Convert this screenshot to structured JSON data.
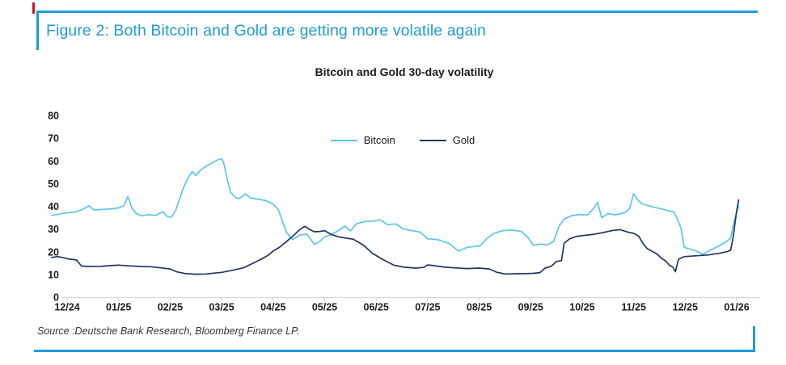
{
  "figure": {
    "title": "Figure 2: Both Bitcoin and Gold are getting more volatile again",
    "source": "Source :Deutsche Bank Research, Bloomberg Finance LP.",
    "accent_color": "#1e9cd8",
    "edge_marker_color": "#d11124"
  },
  "chart_data": {
    "type": "line",
    "title": "Bitcoin and Gold 30-day volatility",
    "x_ticklabels": [
      "12/24",
      "01/25",
      "02/25",
      "03/25",
      "04/25",
      "05/25",
      "06/25",
      "07/25",
      "08/25",
      "09/25",
      "10/25",
      "11/25",
      "12/25",
      "01/26"
    ],
    "y_ticks": [
      0,
      10,
      20,
      30,
      40,
      50,
      60,
      70,
      80
    ],
    "ylim": [
      0,
      80
    ],
    "grid": false,
    "legend_position": "top-center",
    "x_domain_months": [
      0,
      13
    ],
    "series": [
      {
        "name": "Bitcoin",
        "color": "#5bc6e8",
        "points": [
          [
            -0.3,
            36.0
          ],
          [
            -0.15,
            36.6
          ],
          [
            0,
            37.2
          ],
          [
            0.15,
            37.4
          ],
          [
            0.3,
            38.6
          ],
          [
            0.42,
            40.2
          ],
          [
            0.52,
            38.4
          ],
          [
            0.68,
            38.6
          ],
          [
            0.85,
            38.9
          ],
          [
            1.0,
            39.3
          ],
          [
            1.1,
            40.3
          ],
          [
            1.18,
            44.3
          ],
          [
            1.26,
            39.2
          ],
          [
            1.34,
            36.9
          ],
          [
            1.45,
            35.8
          ],
          [
            1.58,
            36.3
          ],
          [
            1.72,
            36.0
          ],
          [
            1.86,
            37.7
          ],
          [
            1.94,
            35.6
          ],
          [
            2.02,
            35.2
          ],
          [
            2.1,
            37.8
          ],
          [
            2.18,
            43.0
          ],
          [
            2.26,
            48.2
          ],
          [
            2.35,
            52.6
          ],
          [
            2.43,
            55.3
          ],
          [
            2.5,
            53.6
          ],
          [
            2.58,
            55.7
          ],
          [
            2.7,
            57.7
          ],
          [
            2.82,
            59.2
          ],
          [
            2.92,
            60.4
          ],
          [
            3.0,
            60.9
          ],
          [
            3.04,
            59.3
          ],
          [
            3.1,
            52.8
          ],
          [
            3.17,
            46.3
          ],
          [
            3.26,
            44.0
          ],
          [
            3.34,
            43.4
          ],
          [
            3.46,
            45.5
          ],
          [
            3.56,
            43.7
          ],
          [
            3.72,
            43.1
          ],
          [
            3.86,
            42.5
          ],
          [
            4.0,
            41.0
          ],
          [
            4.1,
            38.6
          ],
          [
            4.18,
            33.5
          ],
          [
            4.26,
            28.5
          ],
          [
            4.38,
            25.4
          ],
          [
            4.52,
            27.4
          ],
          [
            4.66,
            27.7
          ],
          [
            4.8,
            23.2
          ],
          [
            4.92,
            24.8
          ],
          [
            5.0,
            26.6
          ],
          [
            5.12,
            27.4
          ],
          [
            5.28,
            29.5
          ],
          [
            5.4,
            31.3
          ],
          [
            5.5,
            29.2
          ],
          [
            5.62,
            32.4
          ],
          [
            5.78,
            33.3
          ],
          [
            5.95,
            33.5
          ],
          [
            6.08,
            34.1
          ],
          [
            6.22,
            31.9
          ],
          [
            6.38,
            32.3
          ],
          [
            6.52,
            30.1
          ],
          [
            6.7,
            29.3
          ],
          [
            6.86,
            28.6
          ],
          [
            7.0,
            25.7
          ],
          [
            7.2,
            25.3
          ],
          [
            7.42,
            23.6
          ],
          [
            7.6,
            20.3
          ],
          [
            7.76,
            21.9
          ],
          [
            7.9,
            22.3
          ],
          [
            8.02,
            22.6
          ],
          [
            8.16,
            26.1
          ],
          [
            8.3,
            28.2
          ],
          [
            8.46,
            29.3
          ],
          [
            8.64,
            29.6
          ],
          [
            8.82,
            28.9
          ],
          [
            8.95,
            26.3
          ],
          [
            9.05,
            22.9
          ],
          [
            9.2,
            23.4
          ],
          [
            9.32,
            23.0
          ],
          [
            9.45,
            24.7
          ],
          [
            9.55,
            31.2
          ],
          [
            9.65,
            34.4
          ],
          [
            9.8,
            35.9
          ],
          [
            9.95,
            36.4
          ],
          [
            10.1,
            36.2
          ],
          [
            10.22,
            39.0
          ],
          [
            10.3,
            41.7
          ],
          [
            10.38,
            35.0
          ],
          [
            10.5,
            36.8
          ],
          [
            10.65,
            36.2
          ],
          [
            10.82,
            37.2
          ],
          [
            10.92,
            38.9
          ],
          [
            11.0,
            45.6
          ],
          [
            11.07,
            43.1
          ],
          [
            11.16,
            41.1
          ],
          [
            11.3,
            40.2
          ],
          [
            11.48,
            39.2
          ],
          [
            11.65,
            38.2
          ],
          [
            11.78,
            37.5
          ],
          [
            11.85,
            34.3
          ],
          [
            11.92,
            30.3
          ],
          [
            11.98,
            22.1
          ],
          [
            12.05,
            21.4
          ],
          [
            12.18,
            20.7
          ],
          [
            12.34,
            18.9
          ],
          [
            12.5,
            20.8
          ],
          [
            12.64,
            22.4
          ],
          [
            12.78,
            24.2
          ],
          [
            12.88,
            25.9
          ],
          [
            12.94,
            32.3
          ],
          [
            13.0,
            37.5
          ],
          [
            13.04,
            40.1
          ]
        ]
      },
      {
        "name": "Gold",
        "color": "#22355f",
        "points": [
          [
            -0.3,
            17.5
          ],
          [
            -0.18,
            17.9
          ],
          [
            -0.05,
            17.2
          ],
          [
            0.05,
            16.7
          ],
          [
            0.18,
            16.4
          ],
          [
            0.28,
            13.7
          ],
          [
            0.45,
            13.5
          ],
          [
            0.65,
            13.6
          ],
          [
            0.85,
            13.9
          ],
          [
            1.0,
            14.1
          ],
          [
            1.2,
            13.8
          ],
          [
            1.42,
            13.5
          ],
          [
            1.62,
            13.4
          ],
          [
            1.82,
            12.9
          ],
          [
            2.0,
            12.4
          ],
          [
            2.14,
            11.1
          ],
          [
            2.3,
            10.4
          ],
          [
            2.5,
            10.1
          ],
          [
            2.7,
            10.2
          ],
          [
            2.86,
            10.6
          ],
          [
            3.0,
            10.9
          ],
          [
            3.2,
            11.8
          ],
          [
            3.42,
            12.9
          ],
          [
            3.58,
            14.6
          ],
          [
            3.74,
            16.4
          ],
          [
            3.9,
            18.4
          ],
          [
            4.0,
            20.3
          ],
          [
            4.12,
            21.9
          ],
          [
            4.25,
            24.3
          ],
          [
            4.4,
            27.2
          ],
          [
            4.5,
            29.4
          ],
          [
            4.56,
            30.4
          ],
          [
            4.62,
            31.2
          ],
          [
            4.7,
            29.9
          ],
          [
            4.8,
            28.8
          ],
          [
            4.9,
            28.9
          ],
          [
            5.0,
            29.3
          ],
          [
            5.12,
            27.7
          ],
          [
            5.26,
            26.6
          ],
          [
            5.42,
            26.0
          ],
          [
            5.56,
            25.5
          ],
          [
            5.76,
            22.8
          ],
          [
            5.92,
            19.4
          ],
          [
            6.12,
            16.7
          ],
          [
            6.34,
            14.1
          ],
          [
            6.55,
            13.2
          ],
          [
            6.76,
            12.8
          ],
          [
            6.92,
            13.1
          ],
          [
            7.0,
            14.2
          ],
          [
            7.12,
            13.9
          ],
          [
            7.3,
            13.3
          ],
          [
            7.52,
            12.9
          ],
          [
            7.76,
            12.6
          ],
          [
            8.0,
            12.8
          ],
          [
            8.2,
            12.4
          ],
          [
            8.34,
            11.0
          ],
          [
            8.5,
            10.2
          ],
          [
            8.72,
            10.3
          ],
          [
            8.9,
            10.4
          ],
          [
            9.05,
            10.5
          ],
          [
            9.18,
            10.8
          ],
          [
            9.28,
            12.8
          ],
          [
            9.4,
            13.6
          ],
          [
            9.5,
            15.7
          ],
          [
            9.6,
            16.1
          ],
          [
            9.65,
            23.8
          ],
          [
            9.76,
            25.7
          ],
          [
            9.9,
            26.8
          ],
          [
            10.0,
            27.1
          ],
          [
            10.2,
            27.6
          ],
          [
            10.4,
            28.4
          ],
          [
            10.6,
            29.4
          ],
          [
            10.74,
            29.7
          ],
          [
            10.88,
            28.7
          ],
          [
            11.0,
            28.1
          ],
          [
            11.1,
            26.8
          ],
          [
            11.18,
            23.6
          ],
          [
            11.26,
            21.4
          ],
          [
            11.36,
            20.2
          ],
          [
            11.46,
            18.9
          ],
          [
            11.54,
            17.1
          ],
          [
            11.62,
            16.0
          ],
          [
            11.7,
            13.9
          ],
          [
            11.76,
            13.3
          ],
          [
            11.81,
            11.2
          ],
          [
            11.87,
            16.6
          ],
          [
            11.94,
            17.5
          ],
          [
            12.0,
            17.9
          ],
          [
            12.2,
            18.2
          ],
          [
            12.45,
            18.6
          ],
          [
            12.66,
            19.3
          ],
          [
            12.8,
            20.0
          ],
          [
            12.88,
            20.6
          ],
          [
            12.93,
            26.0
          ],
          [
            12.97,
            33.0
          ],
          [
            13.0,
            38.0
          ],
          [
            13.04,
            42.8
          ]
        ]
      }
    ]
  }
}
